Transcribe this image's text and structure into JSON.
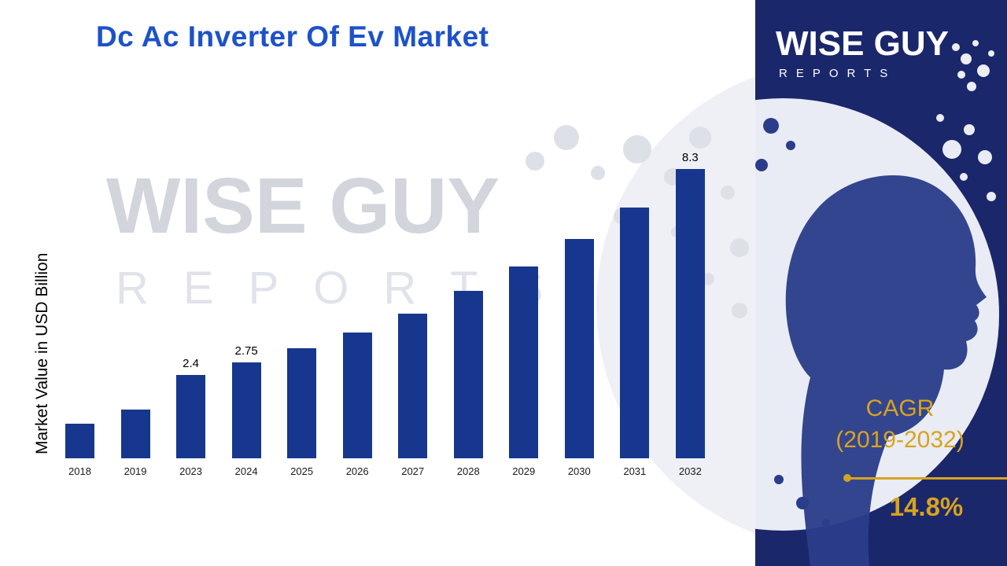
{
  "title": "Dc Ac Inverter Of Ev Market",
  "y_axis_label": "Market Value in USD Billion",
  "watermark": {
    "line1": "WISE GUY",
    "line2": "REPORTS"
  },
  "logo": {
    "name": "WISE GUY",
    "sub": "REPORTS"
  },
  "side_panel": {
    "cagr_label": "CAGR",
    "cagr_range": "(2019-2032)",
    "cagr_value": "14.8%"
  },
  "colors": {
    "title": "#1d52c9",
    "bar": "#17378e",
    "panel": "#1b276b",
    "accent_gold": "#d7a31f",
    "watermark": "#d2d5dc"
  },
  "chart_data": {
    "type": "bar",
    "title": "Dc Ac Inverter Of Ev Market",
    "xlabel": "",
    "ylabel": "Market Value in USD Billion",
    "unit": "USD Billion",
    "categories": [
      "2018",
      "2019",
      "2023",
      "2024",
      "2025",
      "2026",
      "2027",
      "2028",
      "2029",
      "2030",
      "2031",
      "2032"
    ],
    "values": [
      1.0,
      1.4,
      2.4,
      2.75,
      3.15,
      3.6,
      4.15,
      4.8,
      5.5,
      6.3,
      7.2,
      8.3
    ],
    "value_labels": {
      "2023": "2.4",
      "2024": "2.75",
      "2032": "8.3"
    },
    "ylim": [
      0,
      8.3
    ],
    "grid": false,
    "legend": false,
    "cagr": "14.8%",
    "cagr_period": "(2019-2032)"
  }
}
